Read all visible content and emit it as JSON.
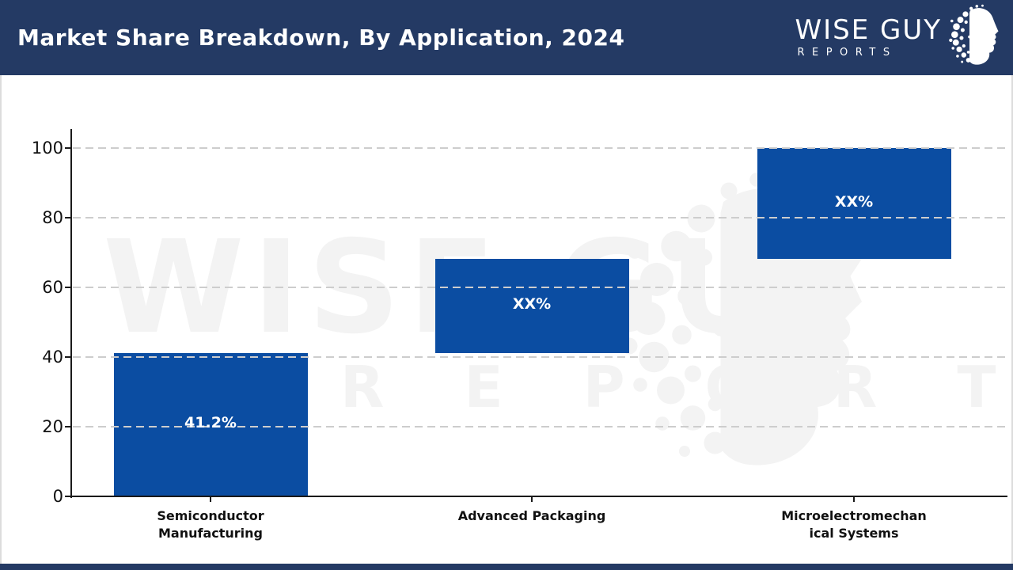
{
  "header": {
    "title": "Market Share Breakdown, By Application, 2024",
    "logo_line1": "WISE GUY",
    "logo_line2": "REPORTS"
  },
  "watermark": {
    "line1": "WISE GUY",
    "line2": "R E P O R T S"
  },
  "chart_data": {
    "type": "bar",
    "variant": "waterfall-segments",
    "title": "Market Share Breakdown, By Application, 2024",
    "categories": [
      "Semiconductor\nManufacturing",
      "Advanced Packaging",
      "Microelectromechan\nical Systems"
    ],
    "series": [
      {
        "name": "Market share (%)",
        "segments": [
          {
            "category": "Semiconductor Manufacturing",
            "start": 0,
            "end": 41.2,
            "label": "41.2%"
          },
          {
            "category": "Advanced Packaging",
            "start": 41.2,
            "end": 68.2,
            "label": "XX%"
          },
          {
            "category": "Microelectromechanical Systems",
            "start": 68.2,
            "end": 100,
            "label": "XX%"
          }
        ]
      }
    ],
    "ylim": [
      0,
      100
    ],
    "yticks": [
      0,
      20,
      40,
      60,
      80,
      100
    ],
    "xlabel": "",
    "ylabel": "",
    "legend": "none",
    "grid": "horizontal-dashed",
    "colors": {
      "bar": "#0b4da2",
      "bar_label": "#ffffff",
      "gridline": "#cdcdcd",
      "axis": "#1a1a1a",
      "header_bg": "#243a64",
      "watermark": "#f3f3f3"
    }
  }
}
